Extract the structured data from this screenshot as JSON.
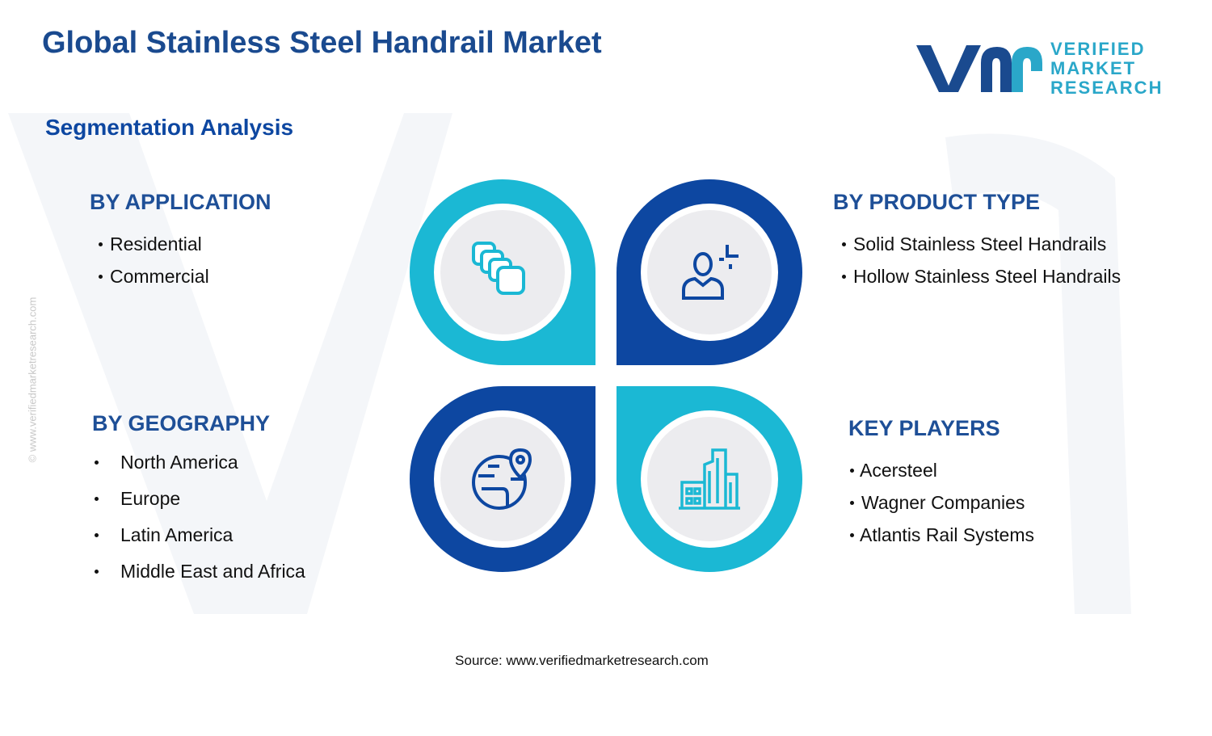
{
  "header": {
    "title": "Global Stainless Steel Handrail Market",
    "subtitle": "Segmentation Analysis",
    "logo": [
      "VERIFIED",
      "MARKET",
      "RESEARCH"
    ]
  },
  "watermark": "© www.verifiedmarketresearch.com",
  "segments": [
    {
      "heading": "BY APPLICATION",
      "items": [
        "Residential",
        "Commercial"
      ]
    },
    {
      "heading": "BY PRODUCT TYPE",
      "items": [
        "Solid Stainless Steel Handrails",
        "Hollow Stainless Steel Handrails"
      ]
    },
    {
      "heading": "BY GEOGRAPHY",
      "items": [
        "North America",
        "Europe",
        "Latin America",
        "Middle East and Africa"
      ]
    },
    {
      "heading": "KEY PLAYERS",
      "items": [
        "Acersteel",
        "Wagner Companies",
        "Atlantis Rail Systems"
      ]
    }
  ],
  "source": "Source: www.verifiedmarketresearch.com"
}
